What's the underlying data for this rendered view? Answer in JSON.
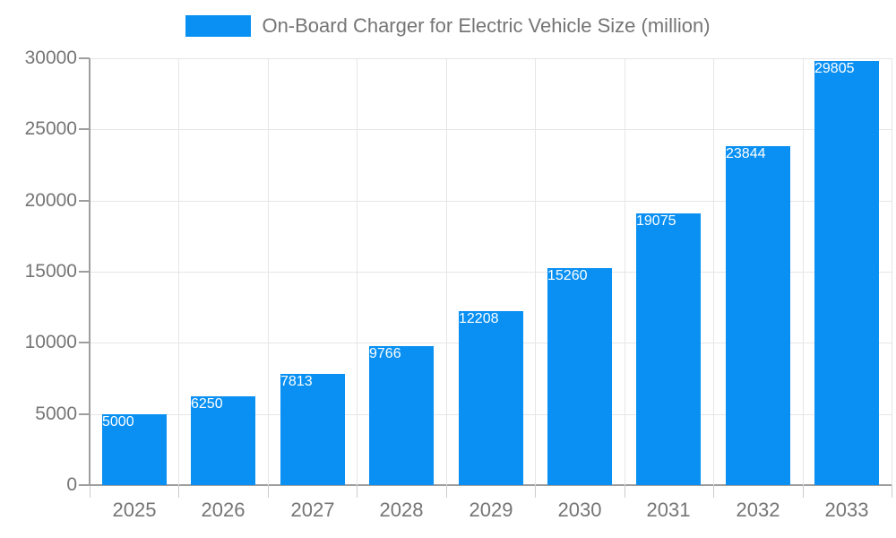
{
  "legend": {
    "label": "On-Board Charger for Electric Vehicle Size (million)"
  },
  "chart_data": {
    "type": "bar",
    "title": "On-Board Charger for Electric Vehicle Size (million)",
    "categories": [
      "2025",
      "2026",
      "2027",
      "2028",
      "2029",
      "2030",
      "2031",
      "2032",
      "2033"
    ],
    "values": [
      5000,
      6250,
      7813,
      9766,
      12208,
      15260,
      19075,
      23844,
      29805
    ],
    "xlabel": "",
    "ylabel": "",
    "ylim": [
      0,
      30000
    ],
    "yticks": [
      0,
      5000,
      10000,
      15000,
      20000,
      25000,
      30000
    ],
    "grid": true,
    "legend_position": "top",
    "colors": {
      "bar": "#0a90f2",
      "axis_line": "#9e9e9e",
      "gridline": "#e6e6e6",
      "tick": "#cccccc",
      "label_text": "#757575",
      "value_text": "#ffffff",
      "background": "#ffffff"
    }
  }
}
